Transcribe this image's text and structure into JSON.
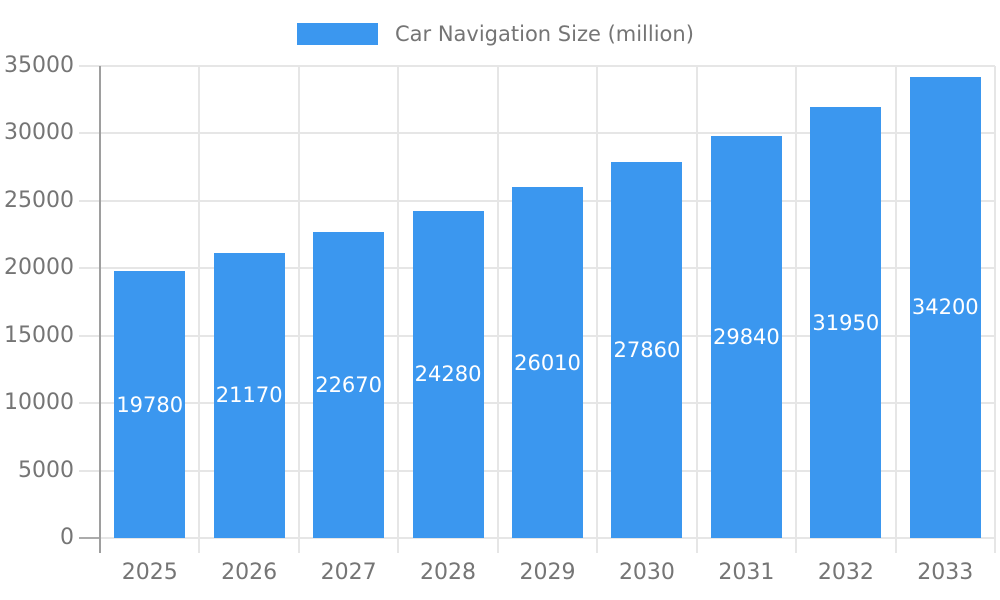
{
  "legend": {
    "label": "Car Navigation Size (million)"
  },
  "colors": {
    "bar": "#3B97EF",
    "gridline": "#E6E6E6",
    "axis_line": "#9E9E9E",
    "zero_tick": "#ABABAB",
    "axis_text": "#757575",
    "value_text": "#FFFFFF",
    "background": "#FFFFFF"
  },
  "chart_data": {
    "type": "bar",
    "title": "Car Navigation Size (million)",
    "categories": [
      "2025",
      "2026",
      "2027",
      "2028",
      "2029",
      "2030",
      "2031",
      "2032",
      "2033"
    ],
    "values": [
      19780,
      21170,
      22670,
      24280,
      26010,
      27860,
      29840,
      31950,
      34200
    ],
    "xlabel": "",
    "ylabel": "",
    "ylim": [
      0,
      35000
    ],
    "yticks": [
      0,
      5000,
      10000,
      15000,
      20000,
      25000,
      30000,
      35000
    ],
    "grid": true,
    "legend_position": "top",
    "value_label_position": "inside-middle",
    "series": [
      {
        "name": "Car Navigation Size (million)",
        "values": [
          19780,
          21170,
          22670,
          24280,
          26010,
          27860,
          29840,
          31950,
          34200
        ]
      }
    ]
  }
}
